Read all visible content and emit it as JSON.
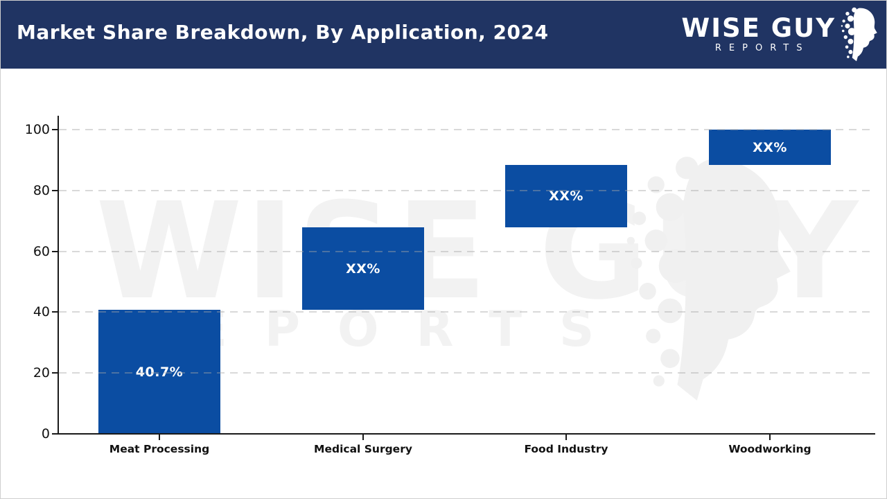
{
  "header": {
    "title": "Market Share Breakdown, By Application, 2024",
    "logo": {
      "line1": "WISE GUY",
      "line2": "REPORTS"
    }
  },
  "watermark": {
    "line1": "WISE GUY",
    "line2": "REPORTS"
  },
  "colors": {
    "header_bg": "#203463",
    "bar": "#0b4da2",
    "bar_label": "#ffffff",
    "axis": "#1a1a1a",
    "tick_text": "#111111",
    "grid": "#dcdcdc",
    "watermark": "#f2f2f2",
    "frame": "#cfcfcf"
  },
  "chart_data": {
    "type": "bar",
    "subtype": "cumulative-waterfall",
    "title": "Market Share Breakdown, By Application, 2024",
    "xlabel": "",
    "ylabel": "",
    "ylim": [
      0,
      100
    ],
    "yticks": [
      0,
      20,
      40,
      60,
      80,
      100
    ],
    "grid": "horizontal-dashed",
    "legend": "none",
    "categories": [
      "Meat Processing",
      "Medical Surgery",
      "Food Industry",
      "Woodworking"
    ],
    "segments": [
      {
        "category": "Meat Processing",
        "start": 0,
        "end": 40.7,
        "value": 40.7,
        "value_label": "40.7%"
      },
      {
        "category": "Medical Surgery",
        "start": 40.7,
        "end": 67.9,
        "value": 27.2,
        "value_label": "XX%"
      },
      {
        "category": "Food Industry",
        "start": 67.9,
        "end": 88.3,
        "value": 20.4,
        "value_label": "XX%"
      },
      {
        "category": "Woodworking",
        "start": 88.3,
        "end": 100,
        "value": 11.7,
        "value_label": "XX%"
      }
    ]
  }
}
